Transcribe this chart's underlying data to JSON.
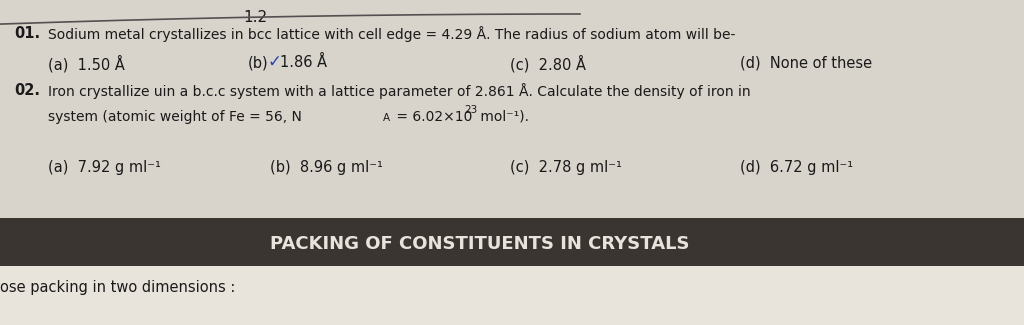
{
  "bg_color": "#c8c4bc",
  "bg_color_top": "#c8c4bc",
  "bg_color_main": "#d8d4cc",
  "bg_color_banner": "#3a3530",
  "bg_color_footer": "#e8e4dc",
  "text_color": "#1a1a1a",
  "banner_text_color": "#e8e4dc",
  "top_line_color": "#555050",
  "header_text": "1.2",
  "q1_number": "01.",
  "q1_text": "Sodium metal crystallizes in bcc lattice with cell edge = 4.29 Å. The radius of sodium atom will be-",
  "q1_a": "(a)  1.50 Å",
  "q1_b": "(b)  1.86 Å",
  "q1_c": "(c)  2.80 Å",
  "q1_d": "(d)  None of these",
  "q2_number": "02.",
  "q2_text": "Iron crystallize uin a b.c.c system with a lattice parameter of 2.861 Å. Calculate the density of iron in",
  "q2_text2_main": "system (atomic weight of Fe = 56, N",
  "q2_text2_sub": "A",
  "q2_text2_rest": " = 6.02×10",
  "q2_text2_sup": "23",
  "q2_text2_end": " mol⁻¹).",
  "q2_a": "(a)  7.92 g ml⁻¹",
  "q2_b": "(b)  8.96 g ml⁻¹",
  "q2_c": "(c)  2.78 g ml⁻¹",
  "q2_d": "(d)  6.72 g ml⁻¹",
  "banner_text": "PACKING OF CONSTITUENTS IN CRYSTALS",
  "footer_text": "ose packing in two dimensions :"
}
